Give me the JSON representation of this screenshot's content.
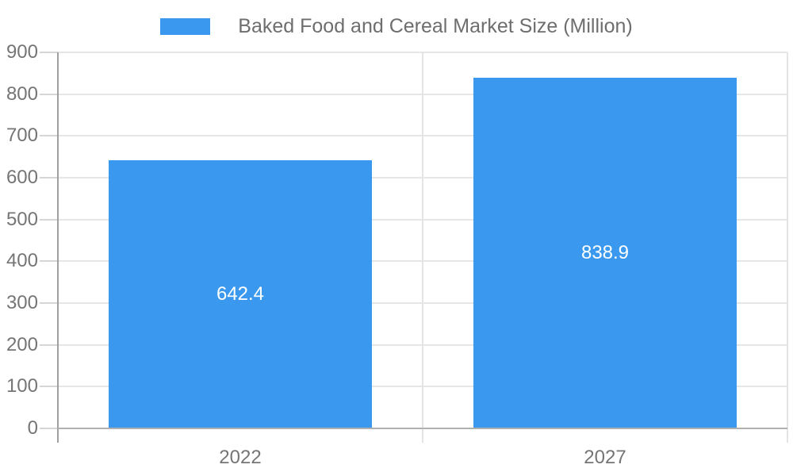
{
  "chart_data": {
    "type": "bar",
    "title": "Baked Food and Cereal Market Size (Million)",
    "categories": [
      "2022",
      "2027"
    ],
    "series": [
      {
        "name": "Baked Food and Cereal Market Size (Million)",
        "values": [
          642.4,
          838.9
        ]
      }
    ],
    "data_labels": [
      "642.4",
      "838.9"
    ],
    "ylim": [
      0,
      900
    ],
    "ytick_step": 100,
    "ytick_labels": [
      "0",
      "100",
      "200",
      "300",
      "400",
      "500",
      "600",
      "700",
      "800",
      "900"
    ],
    "grid": true,
    "legend_position": "top"
  },
  "legend": {
    "label": "Baked Food and Cereal Market Size (Million)"
  },
  "colors": {
    "bar": "#3A99EE",
    "gridline": "#E6E6E6",
    "tick": "#D6D6D6",
    "y_axis": "#A0A0A0",
    "baseline": "#B0B0B0",
    "divider": "#E4E4E4",
    "right_border": "#E4E4E4",
    "axis_text": "#757575",
    "legend_text": "#6E6E6E",
    "data_label_text": "#FFFFFF",
    "background": "#FFFFFF"
  }
}
